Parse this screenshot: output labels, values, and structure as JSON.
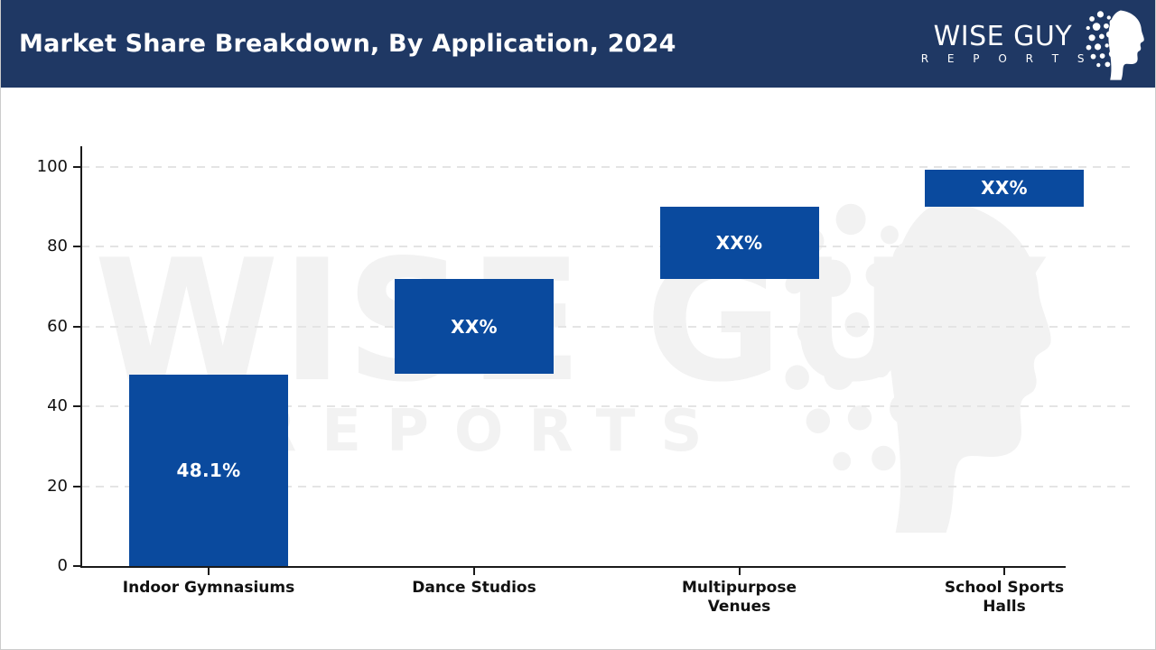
{
  "header": {
    "title": "Market Share Breakdown, By Application, 2024",
    "logo": {
      "primary": "WISE GUY",
      "secondary": "R E P O R T S"
    }
  },
  "watermark": {
    "primary": "WISE GUY",
    "secondary": "REPORTS"
  },
  "chart_data": {
    "type": "bar",
    "subtype": "floating-waterfall",
    "title": "Market Share Breakdown, By Application, 2024",
    "categories": [
      "Indoor Gymnasiums",
      "Dance Studios",
      "Multipurpose Venues",
      "School Sports Halls"
    ],
    "categories_display": [
      "Indoor Gymnasiums",
      "Dance Studios",
      "Multipurpose\nVenues",
      "School Sports\nHalls"
    ],
    "series": [
      {
        "name": "Indoor Gymnasiums",
        "start": 0,
        "end": 48.1,
        "size": 48.1,
        "label": "48.1%"
      },
      {
        "name": "Dance Studios",
        "start": 48.1,
        "end": 72,
        "size": 23.9,
        "label": "XX%"
      },
      {
        "name": "Multipurpose Venues",
        "start": 72,
        "end": 90,
        "size": 18,
        "label": "XX%"
      },
      {
        "name": "School Sports Halls",
        "start": 90,
        "end": 99.3,
        "size": 9.3,
        "label": "XX%"
      }
    ],
    "xlabel": "",
    "ylabel": "",
    "yticks": [
      0,
      20,
      40,
      60,
      80,
      100
    ],
    "ylim": [
      0,
      105
    ],
    "grid": "horizontal dashed",
    "legend": "none",
    "bar_value_label_color": "#ffffff"
  },
  "colors": {
    "header_bg": "#1f3864",
    "bar": "#0a4a9e",
    "grid": "#e4e4e4",
    "axis": "#1a1a1a",
    "watermark": "#f2f2f2",
    "border": "#cccccc"
  }
}
